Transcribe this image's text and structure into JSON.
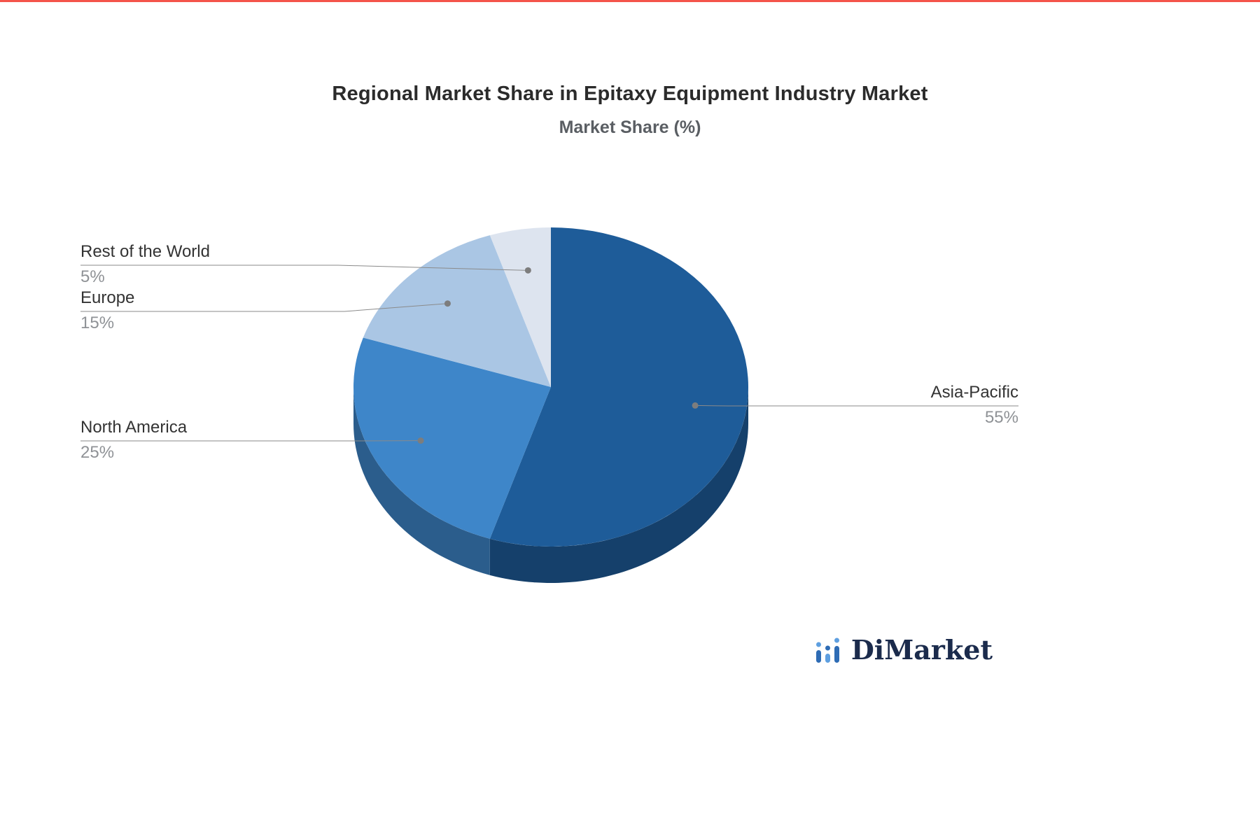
{
  "page": {
    "background": "#ffffff",
    "top_accent_color": "#f4544a"
  },
  "chart_data": {
    "type": "pie",
    "title": "Regional Market Share in Epitaxy Equipment Industry Market",
    "subtitle": "Market Share (%)",
    "unit": "%",
    "direction": "clockwise",
    "start_angle_deg": 0,
    "legend_position": "connector-labels",
    "connector_color": "#8a8a8a",
    "dot_color": "#7d7d7d",
    "label_color": "#333333",
    "percent_color": "#8f9296",
    "slices": [
      {
        "label": "Asia-Pacific",
        "value": 55,
        "color": "#1e5c99",
        "side_color": "#15406b"
      },
      {
        "label": "North America",
        "value": 25,
        "color": "#3e86c9",
        "side_color": "#2b5d8c"
      },
      {
        "label": "Europe",
        "value": 15,
        "color": "#aac6e4",
        "side_color": "#77889e"
      },
      {
        "label": "Rest of the World",
        "value": 5,
        "color": "#dde4ef",
        "side_color": "#9aa0a7"
      }
    ]
  },
  "branding": {
    "name": "DiMarket",
    "text_color": "#1b2b4c",
    "icon": "bar-chart-icon",
    "icon_bar_color": "#2e6cb5",
    "icon_dot_color": "#5e9fe0"
  }
}
